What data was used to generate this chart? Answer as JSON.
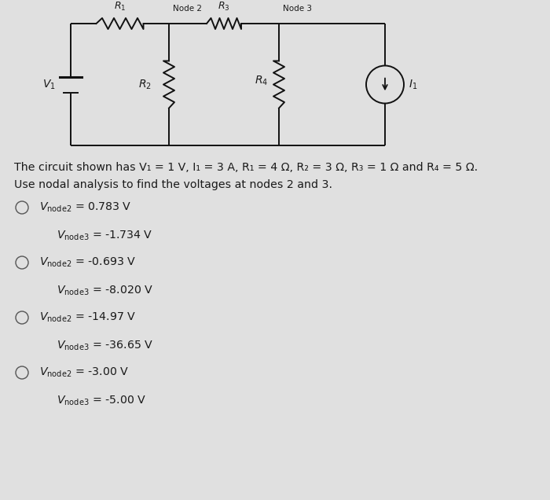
{
  "bg_color": "#e0e0e0",
  "title_text": "The circuit shown has V₁ = 1 V, I₁ = 3 A, R₁ = 4 Ω, R₂ = 3 Ω, R₃ = 1 Ω and R₄ = 5 Ω.",
  "subtitle_text": "Use nodal analysis to find the voltages at nodes 2 and 3.",
  "options": [
    {
      "node2": "0.783",
      "node3": "-1.734"
    },
    {
      "node2": "-0.693",
      "node3": "-8.020"
    },
    {
      "node2": "-14.97",
      "node3": "-36.65"
    },
    {
      "node2": "-3.00",
      "node3": "-5.00"
    }
  ],
  "font_size_body": 10.5,
  "text_color": "#1a1a1a",
  "wire_color": "#111111",
  "lw": 1.4
}
